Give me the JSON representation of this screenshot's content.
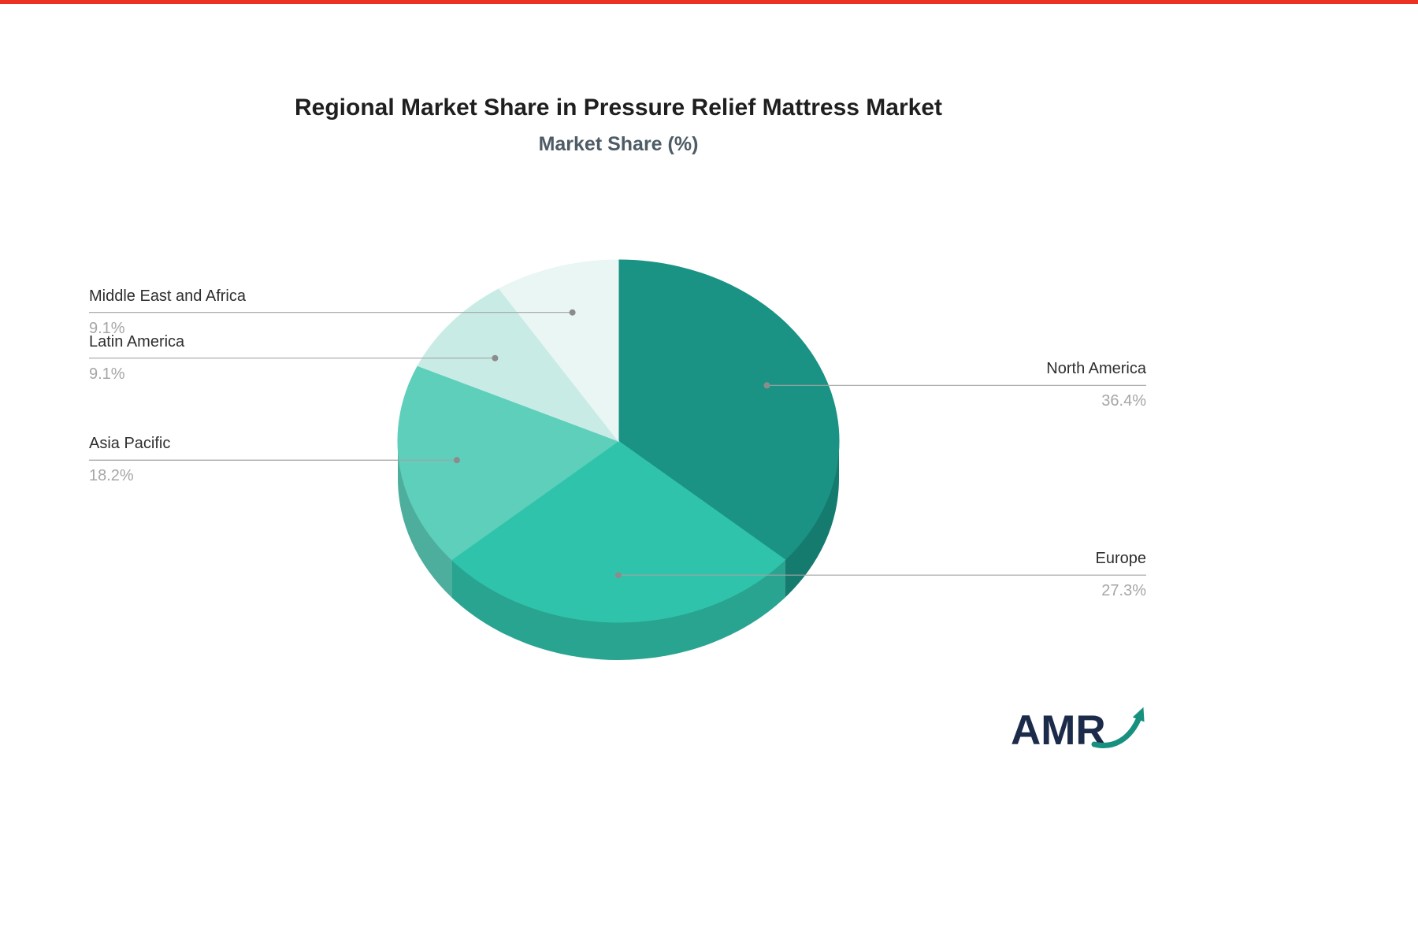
{
  "chart_data": {
    "type": "pie",
    "style": "3d-pie",
    "title": "Regional Market Share in Pressure Relief Mattress Market",
    "subtitle": "Market Share (%)",
    "unit": "%",
    "direction": "clockwise",
    "start_angle_deg": 0,
    "legend_position": "none",
    "labels_layout": "leader-lines",
    "slices": [
      {
        "label": "North America",
        "value": 36.4,
        "display": "36.4%",
        "color": "#1a9384"
      },
      {
        "label": "Europe",
        "value": 27.3,
        "display": "27.3%",
        "color": "#30c3ab"
      },
      {
        "label": "Asia Pacific",
        "value": 18.2,
        "display": "18.2%",
        "color": "#5dcfbb"
      },
      {
        "label": "Latin America",
        "value": 9.1,
        "display": "9.1%",
        "color": "#c8ece5"
      },
      {
        "label": "Middle East and Africa",
        "value": 9.1,
        "display": "9.1%",
        "color": "#e9f6f3"
      }
    ]
  },
  "logo": {
    "text": "AMR"
  },
  "colors": {
    "top_bar": "#ec3323",
    "logo_text": "#1d2b4a",
    "logo_arrow": "#17907f",
    "leader_line": "#a3a3a3",
    "dot": "#8c8c8c",
    "background": "#ffffff"
  }
}
